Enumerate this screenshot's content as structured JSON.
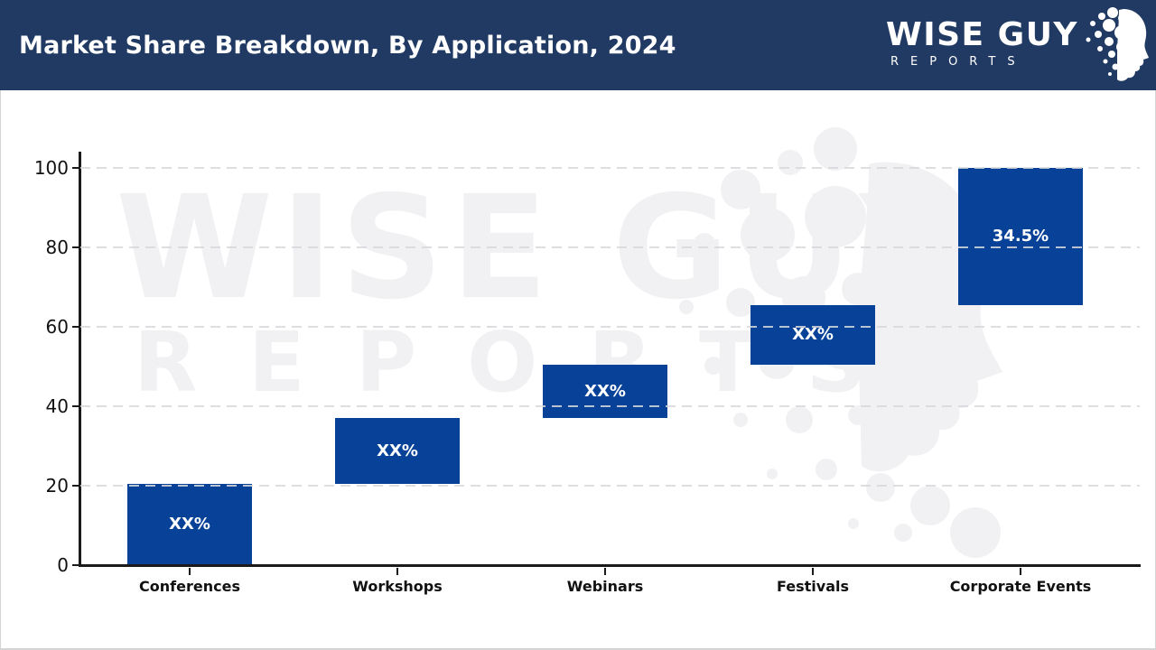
{
  "header": {
    "title": "Market Share Breakdown, By Application, 2024",
    "logo": {
      "brand_line1": "WISE GUY",
      "brand_line2": "REPORTS"
    }
  },
  "watermark": {
    "line1": "WISE GUY",
    "line2": "REPORTS"
  },
  "colors": {
    "header_bg": "#213a63",
    "bar_blue": "#084298",
    "gridline_gray": "#d8d8dc",
    "watermark_gray": "#f1f1f3",
    "axis_black": "#1a1a1a",
    "frame_border": "#d4d4d4"
  },
  "chart_data": {
    "type": "bar",
    "variant": "floating-waterfall",
    "title": "Market Share Breakdown, By Application, 2024",
    "categories": [
      "Conferences",
      "Workshops",
      "Webinars",
      "Festivals",
      "Corporate Events"
    ],
    "series": [
      {
        "name": "Market share segment",
        "starts": [
          0,
          20.5,
          37,
          50.5,
          65.5
        ],
        "ends": [
          20.5,
          37,
          50.5,
          65.5,
          100
        ],
        "values": [
          20.5,
          16.5,
          13.5,
          15,
          34.5
        ]
      }
    ],
    "bar_labels": [
      "XX%",
      "XX%",
      "XX%",
      "XX%",
      "34.5%"
    ],
    "yticks": [
      0,
      20,
      40,
      60,
      80,
      100
    ],
    "ylim": [
      0,
      104
    ],
    "xlabel": "",
    "ylabel": "",
    "grid": "horizontal-dashed",
    "legend": "none",
    "bar_color": "#084298"
  }
}
